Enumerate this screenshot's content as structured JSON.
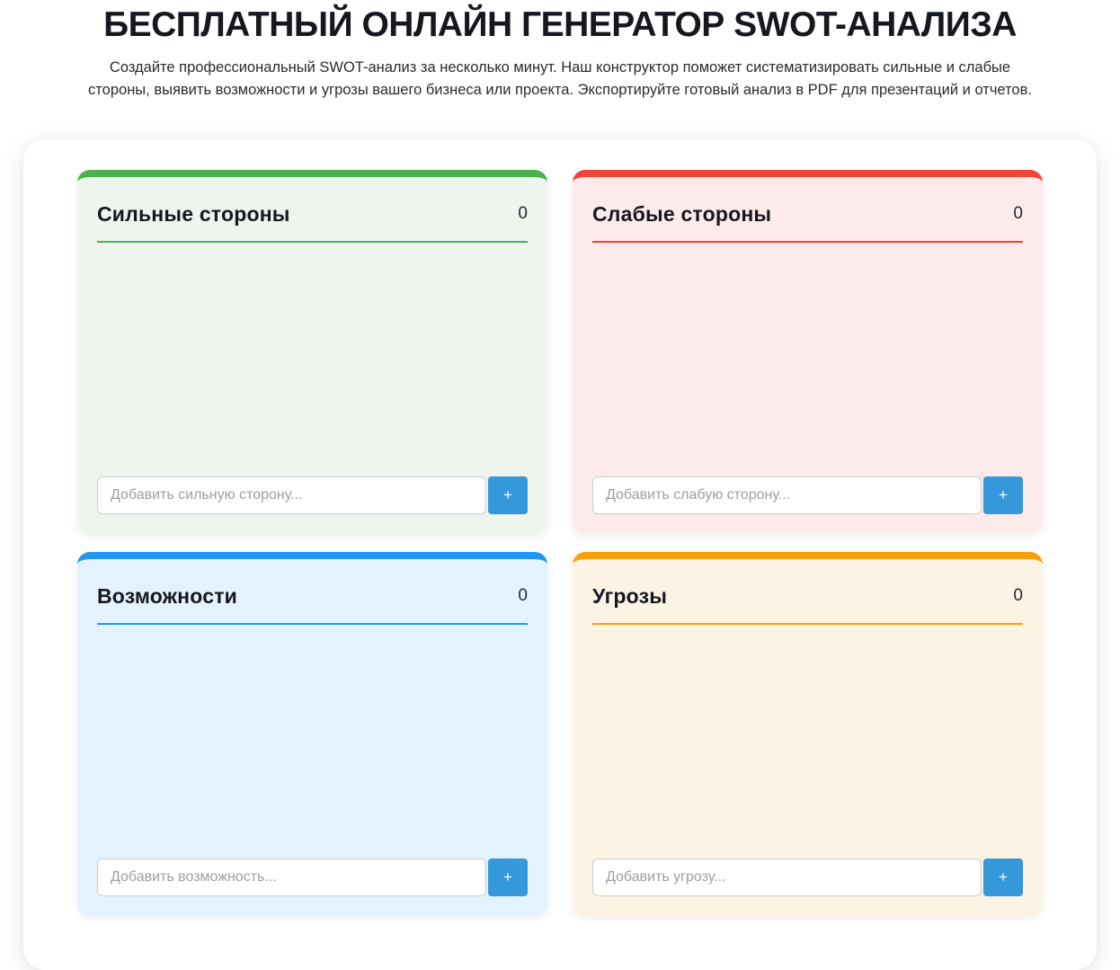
{
  "page": {
    "title": "БЕСПЛАТНЫЙ ОНЛАЙН ГЕНЕРАТОР SWOT-АНАЛИЗА",
    "subtitle": "Создайте профессиональный SWOT-анализ за несколько минут. Наш конструктор поможет систематизировать сильные и слабые стороны, выявить возможности и угрозы вашего бизнеса или проекта. Экспортируйте готовый анализ в PDF для презентаций и отчетов."
  },
  "colors": {
    "add_button": "#3498db",
    "strengths_accent": "#4caf50",
    "strengths_background": "#edf5ee",
    "weaknesses_accent": "#ef4438",
    "weaknesses_background": "#fdeaea",
    "opportunities_accent": "#2196f3",
    "opportunities_background": "#e3f2fd",
    "threats_accent": "#f9a008",
    "threats_background": "#fdf3e4"
  },
  "quadrants": [
    {
      "id": "strengths",
      "title": "Сильные стороны",
      "count": "0",
      "placeholder": "Добавить сильную сторону...",
      "add_label": "+",
      "accent": "#4caf50",
      "background": "#edf5ee"
    },
    {
      "id": "weaknesses",
      "title": "Слабые стороны",
      "count": "0",
      "placeholder": "Добавить слабую сторону...",
      "add_label": "+",
      "accent": "#ef4438",
      "background": "#fdeaea"
    },
    {
      "id": "opportunities",
      "title": "Возможности",
      "count": "0",
      "placeholder": "Добавить возможность...",
      "add_label": "+",
      "accent": "#2196f3",
      "background": "#e3f2fd"
    },
    {
      "id": "threats",
      "title": "Угрозы",
      "count": "0",
      "placeholder": "Добавить угрозу...",
      "add_label": "+",
      "accent": "#f9a008",
      "background": "#fdf3e4"
    }
  ]
}
